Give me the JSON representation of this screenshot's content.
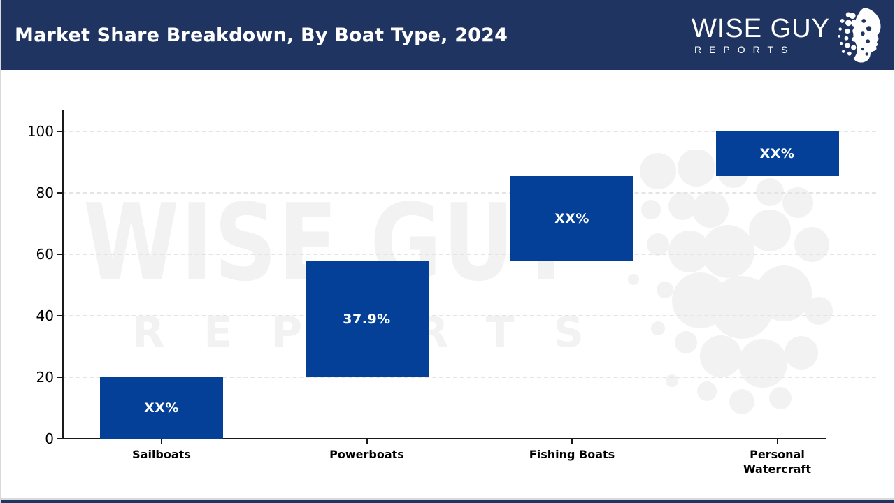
{
  "header": {
    "title": "Market Share Breakdown, By Boat Type, 2024",
    "logo": {
      "line1": "WISE GUY",
      "line2": "REPORTS"
    }
  },
  "watermark": {
    "line1": "WISE GUY",
    "line2": "REPORTS"
  },
  "colors": {
    "header_bg": "#1f3461",
    "footer_bg": "#1f3461",
    "bar_blue": "#044098",
    "bar_label": "#ffffff",
    "gridline": "#e4e4e4",
    "axis": "#1a1a1a",
    "watermark": "#f2f2f2"
  },
  "chart_data": {
    "type": "bar",
    "subtype": "waterfall",
    "title": "Market Share Breakdown, By Boat Type, 2024",
    "categories": [
      "Sailboats",
      "Powerboats",
      "Fishing Boats",
      "Personal Watercraft"
    ],
    "values": [
      20,
      37.9,
      27.6,
      14.5
    ],
    "segments": [
      {
        "from": 0,
        "to": 20
      },
      {
        "from": 20,
        "to": 57.9
      },
      {
        "from": 57.9,
        "to": 85.5
      },
      {
        "from": 85.5,
        "to": 100
      }
    ],
    "bar_labels": [
      "XX%",
      "37.9%",
      "XX%",
      "XX%"
    ],
    "xlabel": "",
    "ylabel": "",
    "yticks": [
      0,
      20,
      40,
      60,
      80,
      100
    ],
    "ylim": [
      0,
      106
    ],
    "grid": "dashed-horizontal",
    "legend": "none",
    "bar_color": "#044098",
    "bar_label_color": "#ffffff"
  }
}
